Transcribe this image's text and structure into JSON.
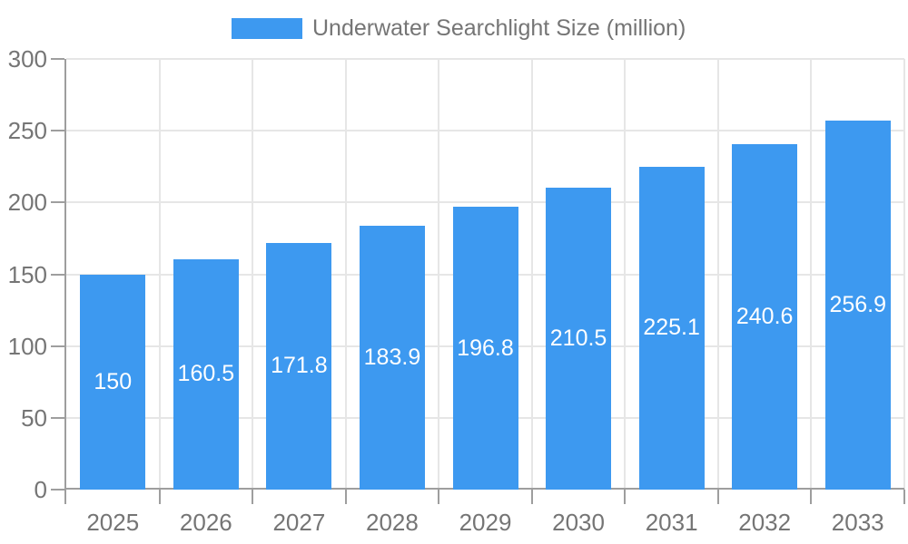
{
  "colors": {
    "bar": "#3D99F0",
    "grid": "#E6E6E6",
    "axis": "#9E9E9E",
    "text": "#757575",
    "bar_label": "#FFFFFF"
  },
  "legend": {
    "label": "Underwater Searchlight Size (million)"
  },
  "chart_data": {
    "type": "bar",
    "title": "Underwater Searchlight Size (million)",
    "categories": [
      "2025",
      "2026",
      "2027",
      "2028",
      "2029",
      "2030",
      "2031",
      "2032",
      "2033"
    ],
    "values": [
      150,
      160.5,
      171.8,
      183.9,
      196.8,
      210.5,
      225.1,
      240.6,
      256.9
    ],
    "xlabel": "",
    "ylabel": "",
    "ylim": [
      0,
      300
    ],
    "yticks": [
      0,
      50,
      100,
      150,
      200,
      250,
      300
    ],
    "grid": true,
    "legend_position": "top",
    "bar_labels_inside": true
  }
}
